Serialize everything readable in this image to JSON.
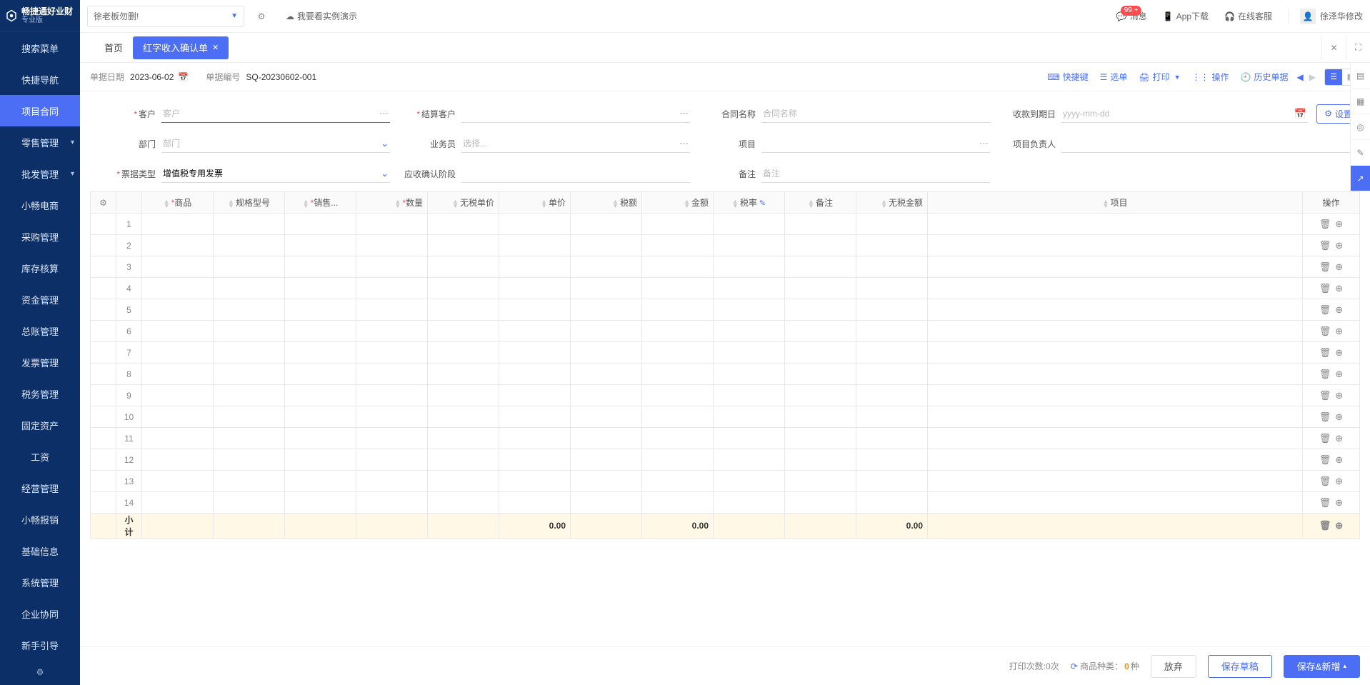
{
  "sidebar": {
    "logo_line1": "畅捷通好业财",
    "logo_line2": "专业版",
    "items": [
      {
        "label": "搜索菜单",
        "expand": false
      },
      {
        "label": "快捷导航",
        "expand": false
      },
      {
        "label": "项目合同",
        "expand": false,
        "active": true
      },
      {
        "label": "零售管理",
        "expand": true
      },
      {
        "label": "批发管理",
        "expand": true
      },
      {
        "label": "小畅电商",
        "expand": false
      },
      {
        "label": "采购管理",
        "expand": false
      },
      {
        "label": "库存核算",
        "expand": false
      },
      {
        "label": "资金管理",
        "expand": false
      },
      {
        "label": "总账管理",
        "expand": false
      },
      {
        "label": "发票管理",
        "expand": false
      },
      {
        "label": "税务管理",
        "expand": false
      },
      {
        "label": "固定资产",
        "expand": false
      },
      {
        "label": "工资",
        "expand": false
      },
      {
        "label": "经营管理",
        "expand": false
      },
      {
        "label": "小畅报销",
        "expand": false
      },
      {
        "label": "基础信息",
        "expand": false
      },
      {
        "label": "系统管理",
        "expand": false
      },
      {
        "label": "企业协同",
        "expand": false
      },
      {
        "label": "新手引导",
        "expand": false
      }
    ]
  },
  "topbar": {
    "select_text": "徐老板勿删!",
    "demo_label": "我要看实例演示",
    "message_label": "消息",
    "message_badge": "99 +",
    "app_label": "App下载",
    "service_label": "在线客服",
    "user_name": "徐泽华修改"
  },
  "tabs": {
    "t0": "首页",
    "t1": "红字收入确认单"
  },
  "toolbar": {
    "date_label": "单据日期",
    "date_value": "2023-06-02",
    "code_label": "单据编号",
    "code_value": "SQ-20230602-001",
    "shortcut": "快捷键",
    "pick": "选单",
    "print": "打印",
    "ops": "操作",
    "history": "历史单据"
  },
  "form": {
    "customer_label": "客户",
    "customer_ph": "客户",
    "settle_label": "结算客户",
    "settle_ph": "",
    "contract_label": "合同名称",
    "contract_ph": "合同名称",
    "duedate_label": "收款到期日",
    "duedate_ph": "yyyy-mm-dd",
    "dept_label": "部门",
    "dept_ph": "部门",
    "sales_label": "业务员",
    "sales_ph": "选择...",
    "project_label": "项目",
    "project_ph": "",
    "projlead_label": "项目负责人",
    "invoice_label": "票据类型",
    "invoice_value": "增值税专用发票",
    "stage_label": "应收确认阶段",
    "remark_label": "备注",
    "remark_ph": "备注",
    "settings_btn": "设置"
  },
  "table": {
    "headers": {
      "product": "商品",
      "spec": "规格型号",
      "sale": "销售...",
      "qty": "数量",
      "price_notax": "无税单价",
      "price": "单价",
      "tax": "税额",
      "amount": "金额",
      "rate": "税率",
      "remark": "备注",
      "amount_notax": "无税金额",
      "project": "项目",
      "action": "操作"
    },
    "row_count": 14,
    "subtotal_label": "小计",
    "subtotal_price": "0.00",
    "subtotal_amount": "0.00",
    "subtotal_notax": "0.00"
  },
  "footer": {
    "print_count": "打印次数:0次",
    "sku_label": "商品种类：",
    "sku_count": "0",
    "sku_unit": "种",
    "discard": "放弃",
    "draft": "保存草稿",
    "save_new": "保存&新增"
  }
}
